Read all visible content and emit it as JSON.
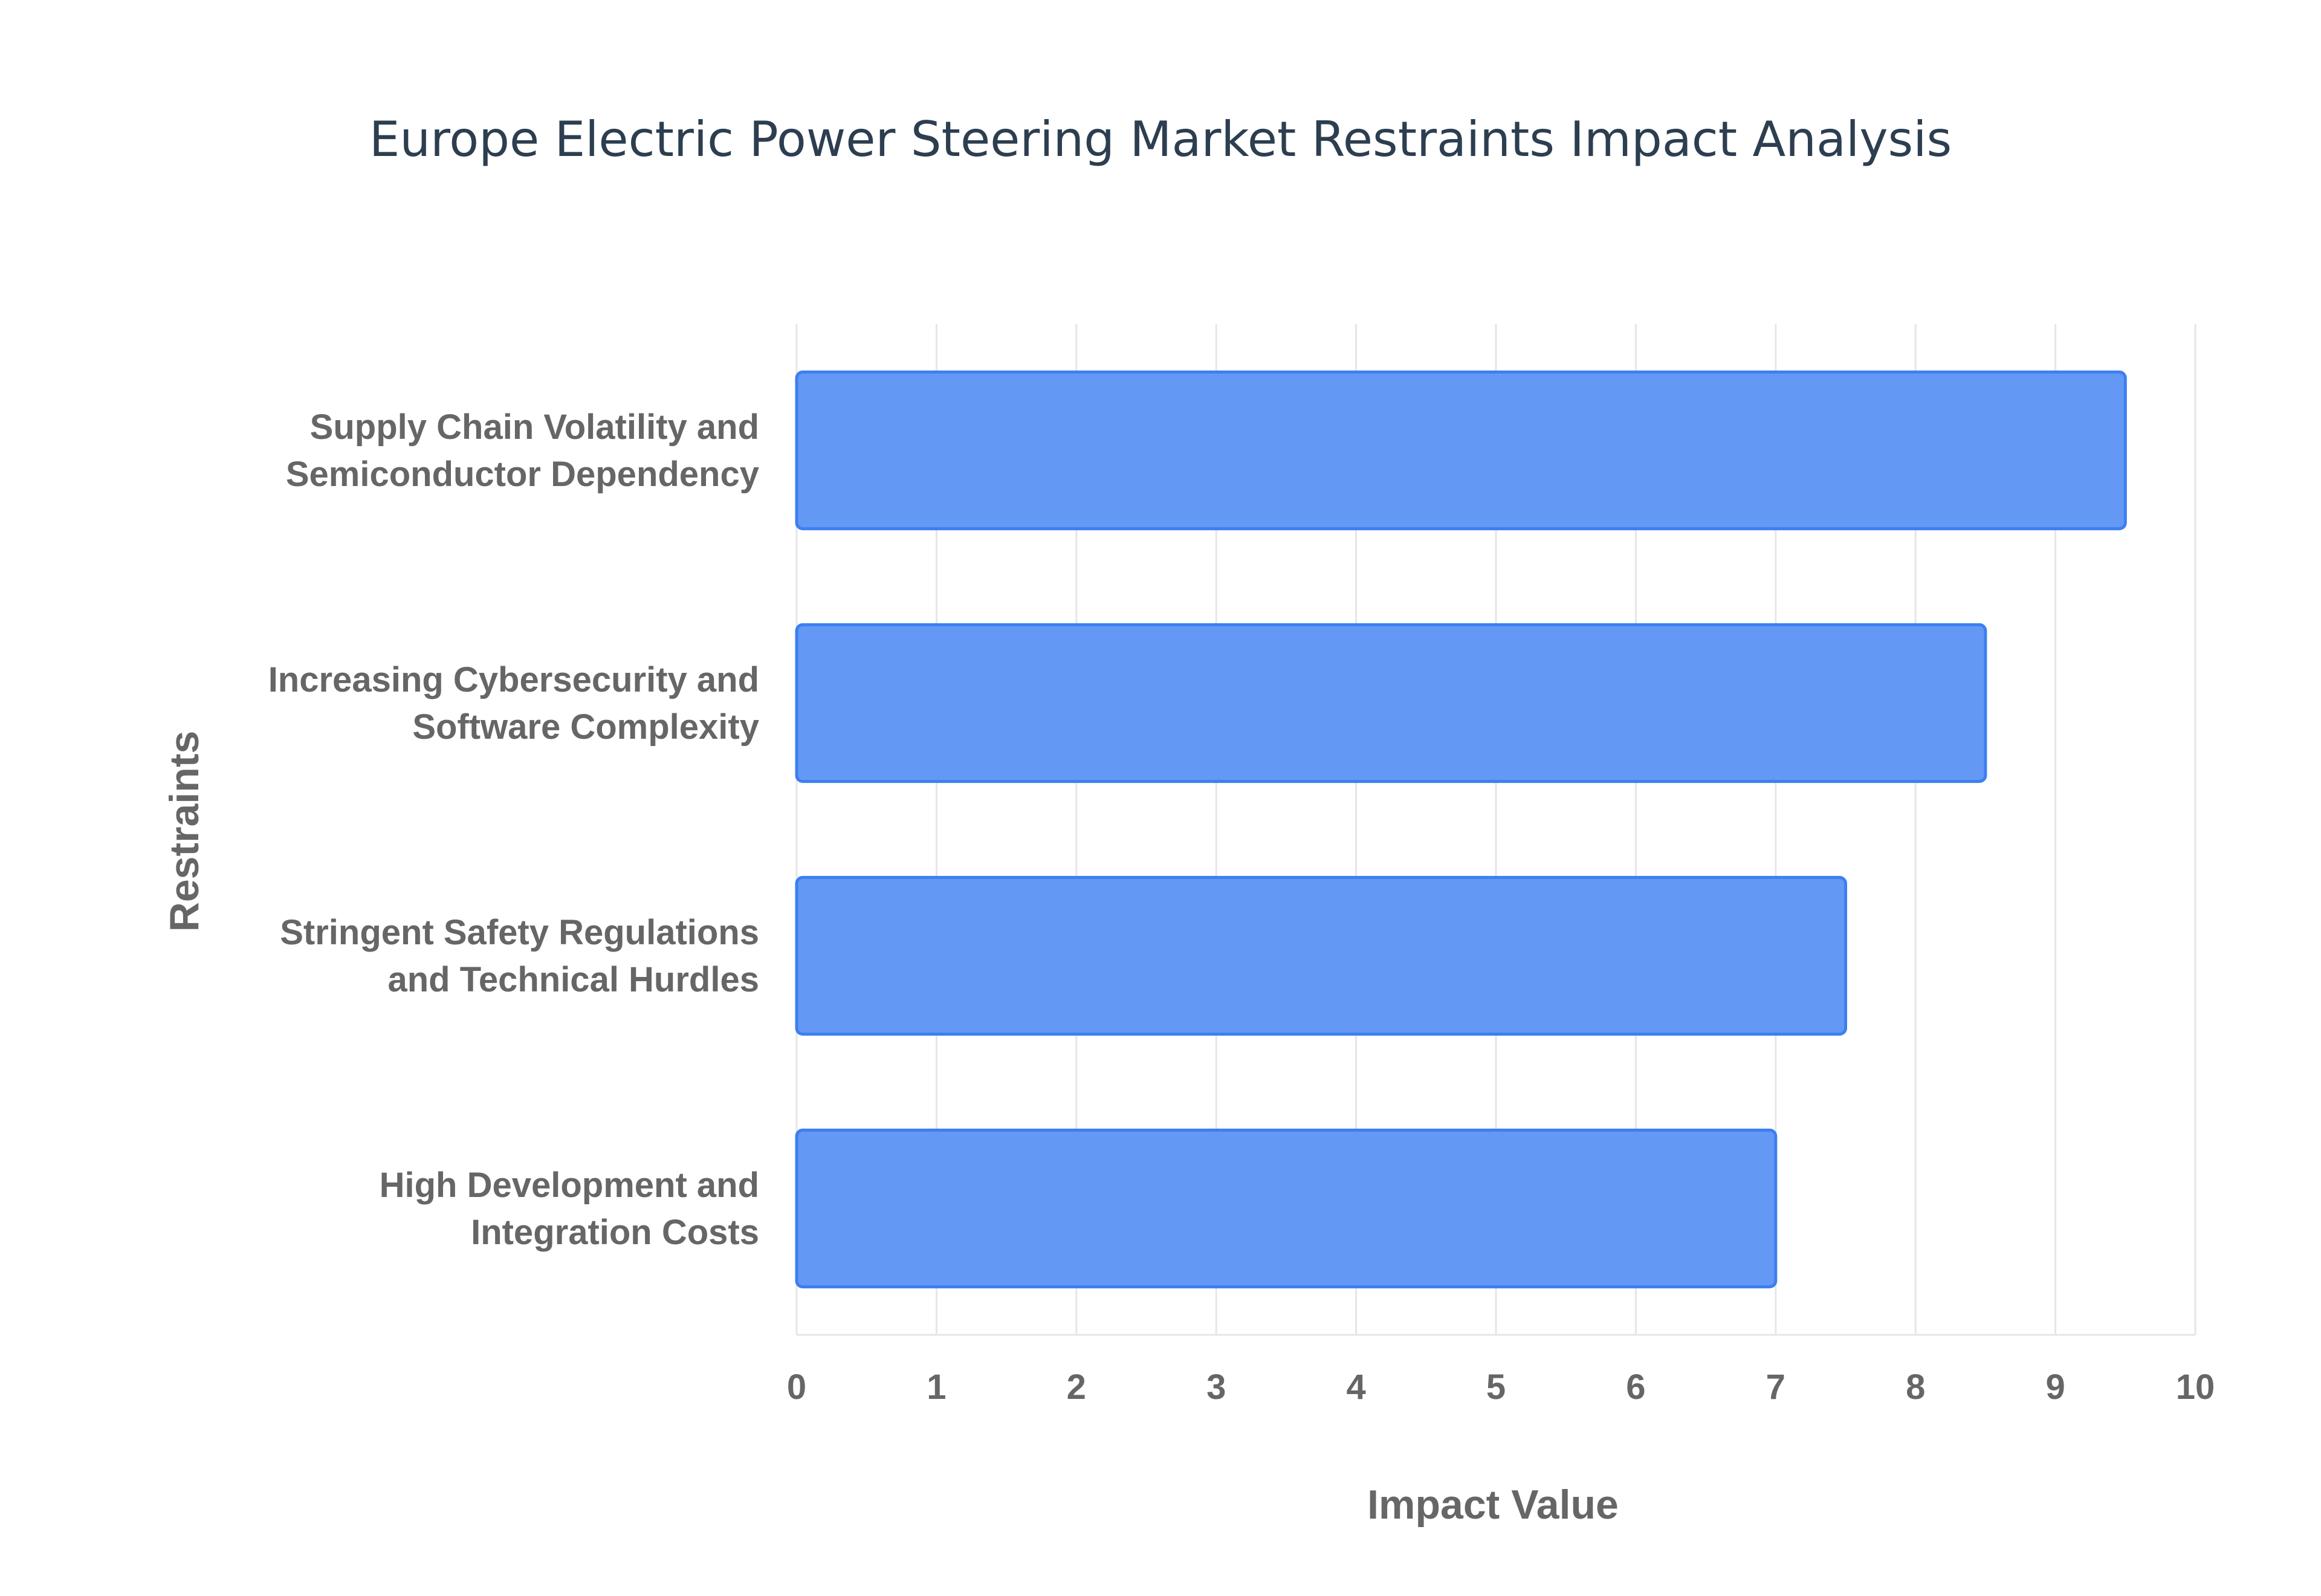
{
  "chart_data": {
    "type": "bar",
    "orientation": "horizontal",
    "title": "Europe Electric Power Steering Market Restraints Impact Analysis",
    "xlabel": "Impact Value",
    "ylabel": "Restraints",
    "categories": [
      [
        "Supply Chain Volatility and",
        "Semiconductor Dependency"
      ],
      [
        "Increasing Cybersecurity and",
        "Software Complexity"
      ],
      [
        "Stringent Safety Regulations",
        "and Technical Hurdles"
      ],
      [
        "High Development and",
        "Integration Costs"
      ]
    ],
    "values": [
      9.5,
      8.5,
      7.5,
      7.0
    ],
    "xlim": [
      0,
      10
    ],
    "xticks": [
      "0",
      "1",
      "2",
      "3",
      "4",
      "5",
      "6",
      "7",
      "8",
      "9",
      "10"
    ],
    "grid": true,
    "bar_color": "#6399f4",
    "bar_border_color": "#3d7ff0"
  }
}
